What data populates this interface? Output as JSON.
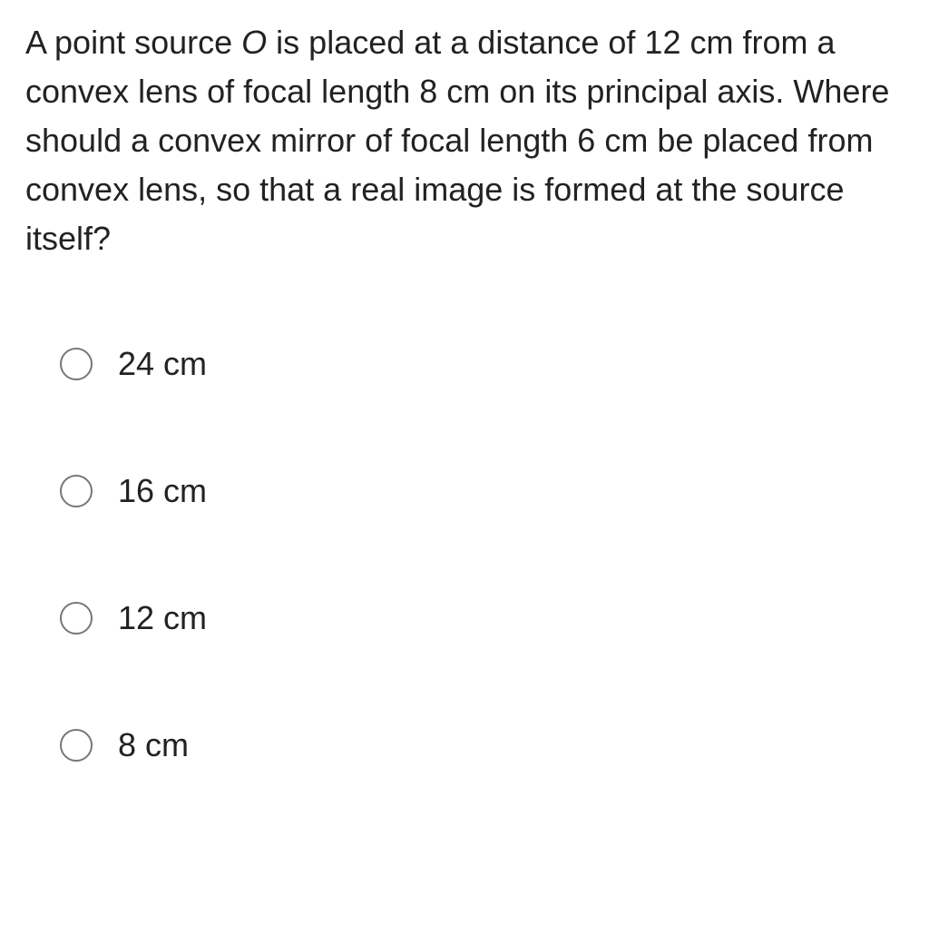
{
  "question": {
    "prefix": "A point source ",
    "variable": "O",
    "suffix": " is placed at a distance of 12 cm from a convex lens of focal length 8 cm on its principal axis. Where should a convex mirror of focal length 6 cm be placed from convex lens, so that a real image is formed at the source itself?"
  },
  "options": [
    {
      "label": "24 cm"
    },
    {
      "label": "16 cm"
    },
    {
      "label": "12 cm"
    },
    {
      "label": "8 cm"
    }
  ],
  "colors": {
    "text": "#222222",
    "radio_border": "#777777",
    "background": "#ffffff"
  },
  "typography": {
    "question_fontsize": 36,
    "option_fontsize": 36,
    "line_height": 1.5
  }
}
